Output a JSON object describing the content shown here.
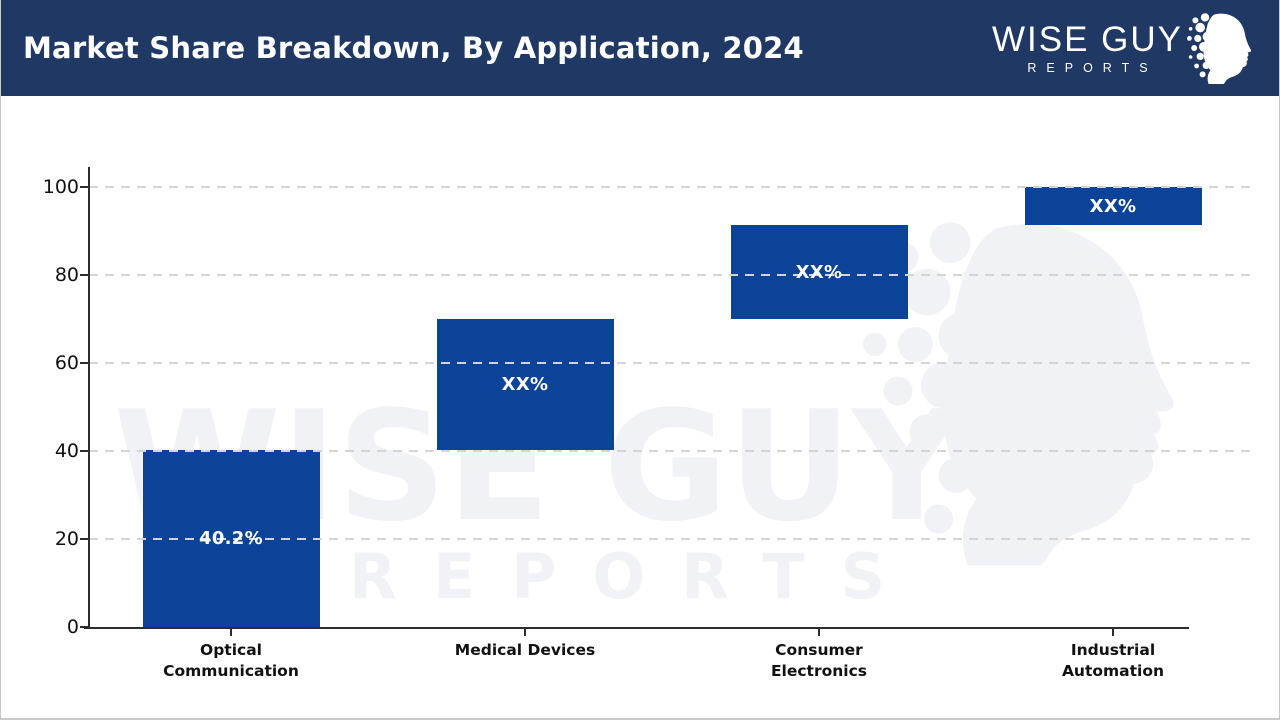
{
  "header": {
    "title": "Market Share Breakdown, By Application, 2024",
    "logo": {
      "line1": "WISE GUY",
      "line2": "REPORTS"
    }
  },
  "watermark": {
    "line1": "WISE GUY",
    "line2": "REPORTS"
  },
  "chart_data": {
    "type": "bar",
    "subtype": "waterfall",
    "title": "Market Share Breakdown, By Application, 2024",
    "categories": [
      [
        "Optical",
        "Communication"
      ],
      [
        "Medical Devices"
      ],
      [
        "Consumer",
        "Electronics"
      ],
      [
        "Industrial",
        "Automation"
      ]
    ],
    "bars": [
      {
        "category": "Optical Communication",
        "start": 0,
        "end": 40.2,
        "label": "40.2%"
      },
      {
        "category": "Medical Devices",
        "start": 40.2,
        "end": 70,
        "label": "XX%"
      },
      {
        "category": "Consumer Electronics",
        "start": 70,
        "end": 91.3,
        "label": "XX%"
      },
      {
        "category": "Industrial Automation",
        "start": 91.3,
        "end": 100,
        "label": "XX%"
      }
    ],
    "yticks": [
      0,
      20,
      40,
      60,
      80,
      100
    ],
    "ylim": [
      0,
      105
    ],
    "xlabel": "",
    "ylabel": "",
    "grid": "horizontal-dashed",
    "legend": "none"
  },
  "theme": {
    "header_bg": "#1f3864",
    "bar_blue": "#0a4397",
    "grid_color": "#d5d5d5",
    "axis_color": "#2d2d2d",
    "text_color": "#111111",
    "watermark_color": "#f1f2f5",
    "logo_color": "#ffffff"
  }
}
